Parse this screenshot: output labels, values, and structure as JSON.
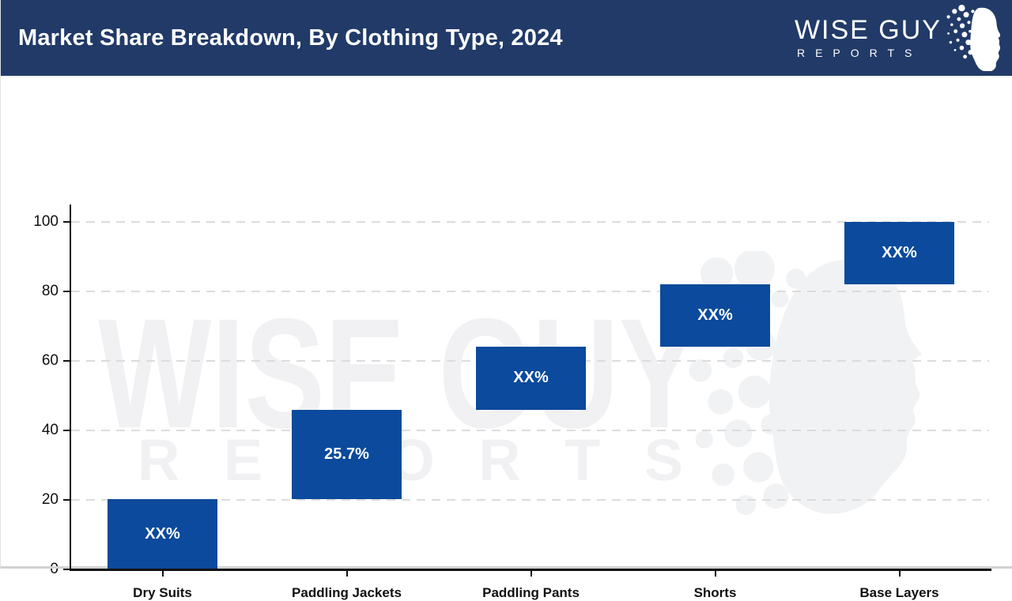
{
  "header": {
    "title": "Market Share Breakdown, By Clothing Type, 2024",
    "bg_color": "#213a68",
    "logo": {
      "line1": "WISE GUY",
      "line2": "REPORTS"
    }
  },
  "watermark": {
    "line1": "WISE GUY",
    "line2": "REPORTS"
  },
  "chart_data": {
    "type": "bar",
    "subtype": "waterfall",
    "title": "Market Share Breakdown, By Clothing Type, 2024",
    "categories": [
      "Dry Suits",
      "Paddling Jackets",
      "Paddling Pants",
      "Shorts",
      "Base Layers"
    ],
    "series": [
      {
        "name": "Market Share",
        "starts": [
          0,
          20.3,
          46,
          64.2,
          82
        ],
        "ends": [
          20.3,
          46,
          64.2,
          82,
          100
        ],
        "values": [
          20.3,
          25.7,
          18.2,
          17.8,
          18
        ]
      }
    ],
    "bar_labels": [
      "XX%",
      "25.7%",
      "XX%",
      "XX%",
      "XX%"
    ],
    "yticks": [
      0,
      20,
      40,
      60,
      80,
      100
    ],
    "ylim": [
      0,
      105
    ],
    "xlabel": "",
    "ylabel": "",
    "grid": "dashed-horizontal",
    "legend": "none",
    "bar_color": "#0b4a9c",
    "bar_label_color": "#ffffff",
    "grid_color": "#dcdcdc",
    "axis_color": "#121212",
    "watermark_color": "#f1f1f3"
  }
}
